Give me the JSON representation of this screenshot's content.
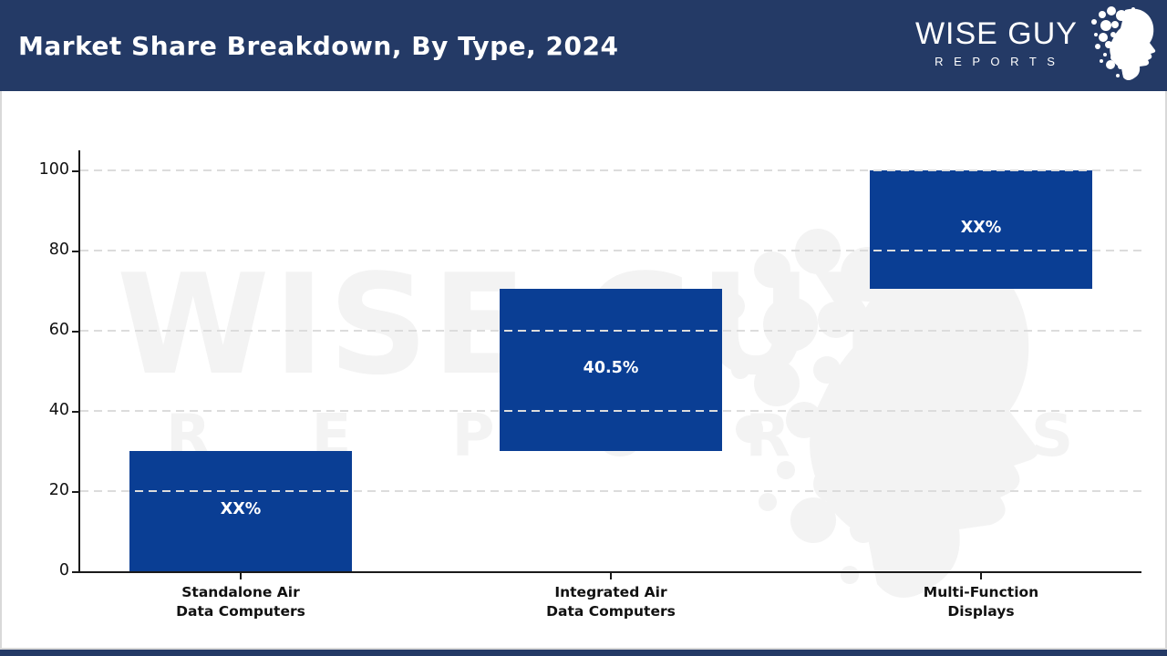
{
  "header": {
    "title": "Market Share Breakdown, By Type, 2024",
    "logo": {
      "name": "WISE GUY",
      "subtitle": "R E P O R T S"
    }
  },
  "watermark": {
    "line1": "WISE GUY",
    "line2": "R E P O R T S"
  },
  "chart_data": {
    "type": "bar",
    "subtype": "floating-waterfall",
    "title": "Market Share Breakdown, By Type, 2024",
    "categories": [
      "Standalone Air Data Computers",
      "Integrated Air Data Computers",
      "Multi-Function Displays"
    ],
    "bars": [
      {
        "category": [
          "Standalone Air",
          "Data Computers"
        ],
        "start": 0,
        "end": 30,
        "label": "XX%"
      },
      {
        "category": [
          "Integrated Air",
          "Data Computers"
        ],
        "start": 30,
        "end": 70.5,
        "label": "40.5%"
      },
      {
        "category": [
          "Multi-Function",
          "Displays"
        ],
        "start": 70.5,
        "end": 100,
        "label": "XX%"
      }
    ],
    "yticks": [
      0,
      20,
      40,
      60,
      80,
      100
    ],
    "ylim": [
      0,
      105
    ],
    "xlabel": "",
    "ylabel": "",
    "grid": "horizontal-dashed",
    "legend": "none",
    "bar_color": "#0a3e94"
  },
  "colors": {
    "header_bg": "#243a66",
    "bar": "#0a3e94",
    "grid": "#dcdcdc",
    "axis": "#1a1a1a",
    "watermark": "#f3f3f3",
    "title_text": "#ffffff"
  }
}
